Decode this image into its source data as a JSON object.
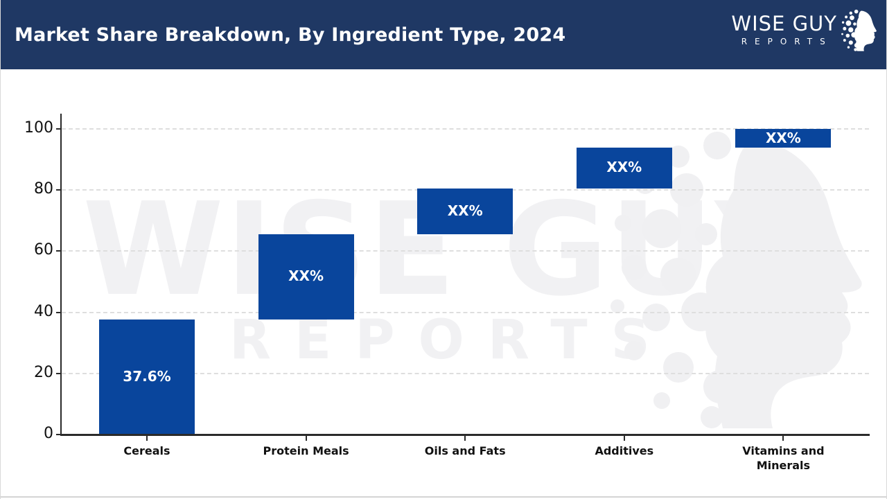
{
  "header": {
    "title": "Market Share Breakdown, By Ingredient Type, 2024",
    "logo_line1": "WISE GUY",
    "logo_line2": "REPORTS",
    "bg_color": "#1f3864",
    "text_color": "#ffffff"
  },
  "watermark": {
    "line1": "WISE GUY",
    "line2": "REPORTS"
  },
  "chart_data": {
    "type": "bar",
    "subtype": "waterfall",
    "title": "Market Share Breakdown, By Ingredient Type, 2024",
    "categories": [
      "Cereals",
      "Protein Meals",
      "Oils and Fats",
      "Additives",
      "Vitamins and Minerals"
    ],
    "segments": [
      {
        "category": "Cereals",
        "start": 0,
        "end": 37.6,
        "label": "37.6%"
      },
      {
        "category": "Protein Meals",
        "start": 37.6,
        "end": 65.6,
        "label": "XX%"
      },
      {
        "category": "Oils and Fats",
        "start": 65.6,
        "end": 80.6,
        "label": "XX%"
      },
      {
        "category": "Additives",
        "start": 80.6,
        "end": 93.8,
        "label": "XX%"
      },
      {
        "category": "Vitamins and Minerals",
        "start": 93.8,
        "end": 100,
        "label": "XX%"
      }
    ],
    "y_ticks": [
      "0",
      "20",
      "40",
      "60",
      "80",
      "100"
    ],
    "y_tick_values": [
      0,
      20,
      40,
      60,
      80,
      100
    ],
    "ylim": [
      0,
      105
    ],
    "xlabel": "",
    "ylabel": "",
    "grid": "horizontal-dashed",
    "legend": "none",
    "bar_color": "#09459c",
    "bar_label_color": "#ffffff",
    "axis_color": "#2a2a2a",
    "gridline_color": "#dedede"
  }
}
